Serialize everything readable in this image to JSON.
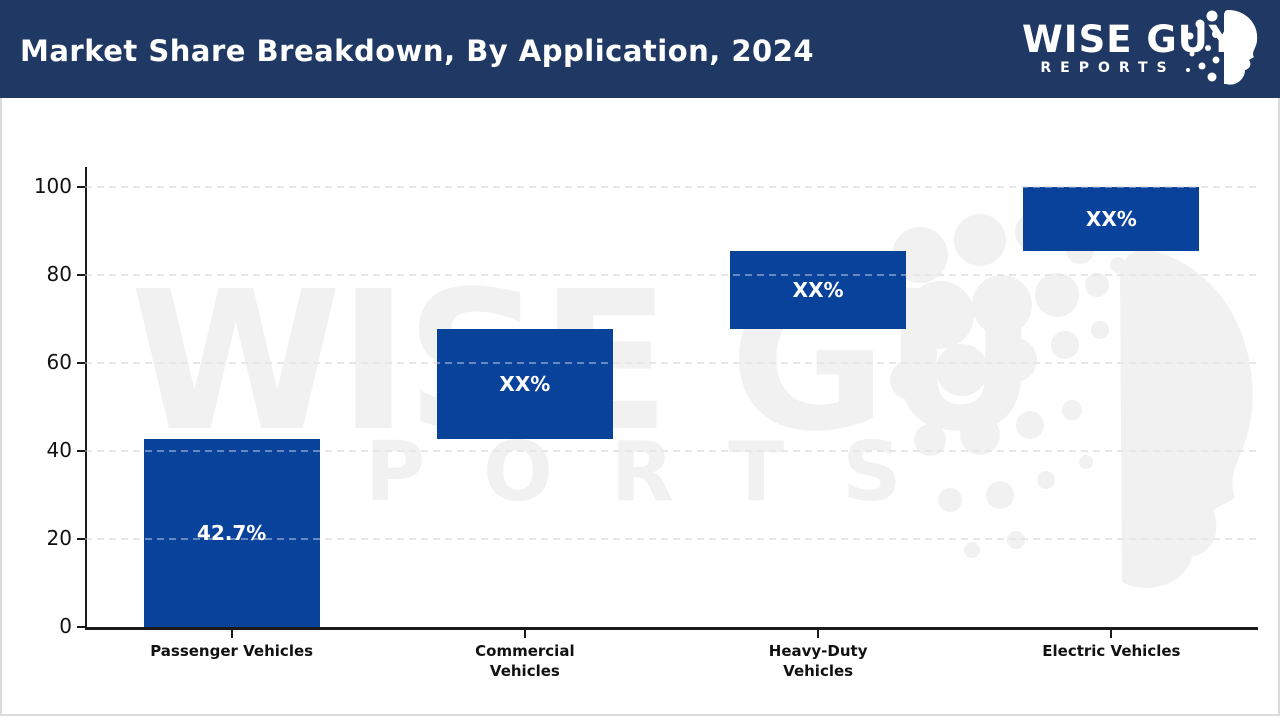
{
  "header": {
    "title": "Market Share Breakdown, By Application, 2024",
    "bg_color": "#1f3864",
    "logo": {
      "line1": "WISE GUY",
      "line2": "REPORTS"
    }
  },
  "watermark": {
    "line1": "WISE GU",
    "line2": "PORTS"
  },
  "chart_data": {
    "type": "bar",
    "subtype": "waterfall",
    "title": "Market Share Breakdown, By Application, 2024",
    "categories": [
      "Passenger Vehicles",
      "Commercial Vehicles",
      "Heavy-Duty Vehicles",
      "Electric Vehicles"
    ],
    "category_lines": [
      [
        "Passenger Vehicles"
      ],
      [
        "Commercial",
        "Vehicles"
      ],
      [
        "Heavy-Duty",
        "Vehicles"
      ],
      [
        "Electric Vehicles"
      ]
    ],
    "segments": [
      {
        "category": "Passenger Vehicles",
        "start": 0,
        "end": 42.7,
        "label": "42.7%"
      },
      {
        "category": "Commercial Vehicles",
        "start": 42.7,
        "end": 67.7,
        "label": "XX%"
      },
      {
        "category": "Heavy-Duty Vehicles",
        "start": 67.7,
        "end": 85.5,
        "label": "XX%"
      },
      {
        "category": "Electric Vehicles",
        "start": 85.5,
        "end": 100,
        "label": "XX%"
      }
    ],
    "y_ticks": [
      0,
      20,
      40,
      60,
      80,
      100
    ],
    "ylim": [
      0,
      105
    ],
    "xlabel": "",
    "ylabel": "",
    "grid": "horizontal-dashed",
    "legend": "none",
    "bar_color": "#08429a",
    "value_label_color": "#ffffff",
    "axis_color": "#1a1a1a",
    "gridline_color": "#d9d9d9"
  }
}
